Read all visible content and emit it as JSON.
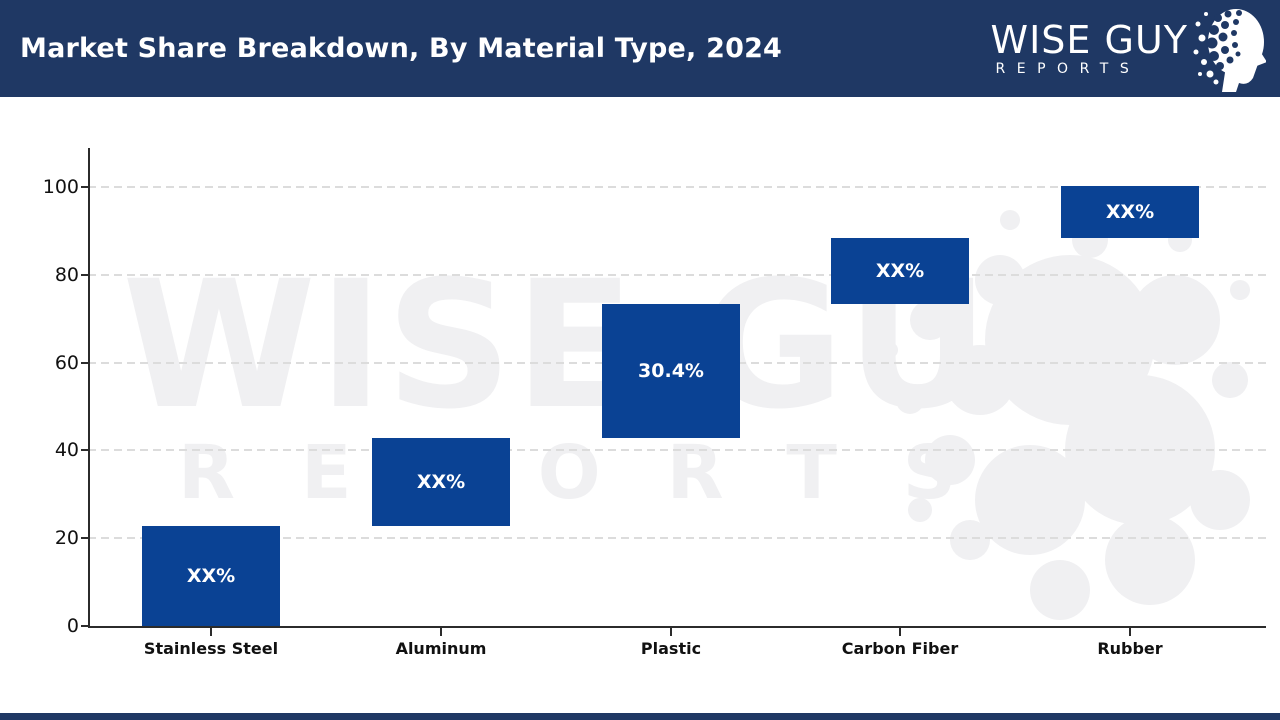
{
  "header": {
    "title": "Market Share Breakdown, By Material Type, 2024",
    "bg_color": "#1F3864",
    "logo": {
      "line1": "WISE GUY",
      "line2": "REPORTS"
    }
  },
  "watermark": {
    "line1": "WISE GUY",
    "line2": "REPORTS"
  },
  "chart_data": {
    "type": "bar",
    "subtype": "waterfall",
    "title": "Market Share Breakdown, By Material Type, 2024",
    "categories": [
      "Stainless Steel",
      "Aluminum",
      "Plastic",
      "Carbon Fiber",
      "Rubber"
    ],
    "segments": [
      {
        "category": "Stainless Steel",
        "start": 0,
        "end": 22.8,
        "value_label": "XX%"
      },
      {
        "category": "Aluminum",
        "start": 22.8,
        "end": 42.8,
        "value_label": "XX%"
      },
      {
        "category": "Plastic",
        "start": 42.8,
        "end": 73.3,
        "value_label": "30.4%"
      },
      {
        "category": "Carbon Fiber",
        "start": 73.3,
        "end": 88.4,
        "value_label": "XX%"
      },
      {
        "category": "Rubber",
        "start": 88.4,
        "end": 100.2,
        "value_label": "XX%"
      }
    ],
    "yticks": [
      0,
      20,
      40,
      60,
      80,
      100
    ],
    "ylim": [
      0,
      108
    ],
    "xlabel": "",
    "ylabel": "",
    "bar_color": "#0A4294",
    "grid": "dashed-horizontal",
    "legend": "none"
  },
  "footer": {
    "bg_color": "#1F3864"
  }
}
